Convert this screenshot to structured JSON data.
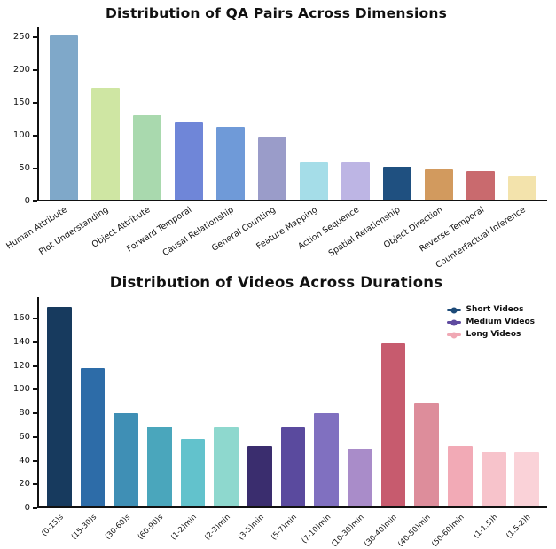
{
  "chart_data": [
    {
      "type": "bar",
      "title": "Distribution of QA Pairs Across Dimensions",
      "categories": [
        "Human Attribute",
        "Plot Understanding",
        "Object Attribute",
        "Forward Temporal",
        "Causal Relationship",
        "General Counting",
        "Feature Mapping",
        "Action Sequence",
        "Spatial Relationship",
        "Object Direction",
        "Reverse Temporal",
        "Counterfactual Inference"
      ],
      "values": [
        253,
        172,
        130,
        119,
        112,
        95,
        57,
        57,
        50,
        46,
        44,
        36
      ],
      "colors": [
        "#7fa8c9",
        "#cfe6a3",
        "#a9d9ae",
        "#6f86d8",
        "#6f9ad8",
        "#9a9cc9",
        "#a5dde8",
        "#bdb5e4",
        "#1f5080",
        "#d29a5e",
        "#c96a6e",
        "#f3e3ac"
      ],
      "xlabel": "",
      "ylabel": "",
      "ylim": [
        0,
        265
      ],
      "yticks": [
        0,
        50,
        100,
        150,
        200,
        250
      ],
      "grid": false,
      "legend": null
    },
    {
      "type": "bar",
      "title": "Distribution of Videos Across Durations",
      "categories": [
        "(0-15)s",
        "(15-30)s",
        "(30-60)s",
        "(60-90)s",
        "(1-2)min",
        "(2-3)min",
        "(3-5)min",
        "(5-7)min",
        "(7-10)min",
        "(10-30)min",
        "(30-40)min",
        "(40-50)min",
        "(50-60)min",
        "(1-1.5)h",
        "(1.5-2)h"
      ],
      "values": [
        170,
        118,
        79,
        68,
        57,
        67,
        51,
        67,
        79,
        49,
        139,
        88,
        51,
        46,
        46
      ],
      "colors": [
        "#173a5e",
        "#2d6ca8",
        "#3f8fb5",
        "#4aa6bc",
        "#62c2cc",
        "#8ed8ce",
        "#3a2d6e",
        "#5a4a9e",
        "#8070c0",
        "#a98cc9",
        "#c75b6e",
        "#dd8d9b",
        "#f2aab6",
        "#f7c3cb",
        "#fad2d8"
      ],
      "xlabel": "",
      "ylabel": "",
      "ylim": [
        0,
        178
      ],
      "yticks": [
        0,
        20,
        40,
        60,
        80,
        100,
        120,
        140,
        160
      ],
      "grid": false,
      "legend": {
        "position": "upper-right",
        "entries": [
          {
            "label": "Short Videos",
            "color": "#1c4a78"
          },
          {
            "label": "Medium Videos",
            "color": "#5f4ba0"
          },
          {
            "label": "Long Videos",
            "color": "#f0a8b4"
          }
        ]
      }
    }
  ]
}
